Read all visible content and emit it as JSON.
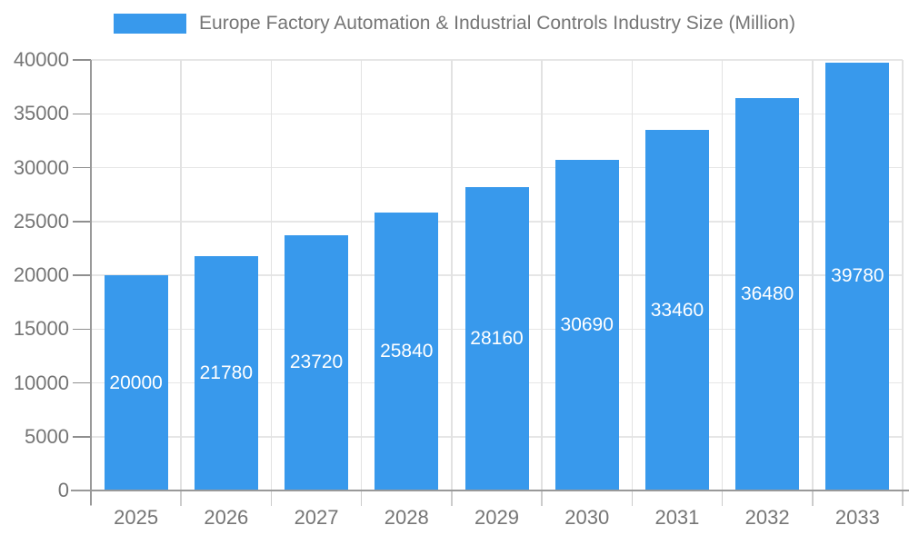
{
  "chart_data": {
    "type": "bar",
    "title": "Europe Factory Automation & Industrial Controls Industry Size (Million)",
    "categories": [
      "2025",
      "2026",
      "2027",
      "2028",
      "2029",
      "2030",
      "2031",
      "2032",
      "2033"
    ],
    "values": [
      20000,
      21780,
      23720,
      25840,
      28160,
      30690,
      33460,
      36480,
      39780
    ],
    "bar_value_labels": [
      "20000",
      "21780",
      "23720",
      "25840",
      "28160",
      "30690",
      "33460",
      "36480",
      "39780"
    ],
    "ytick_labels": [
      "0",
      "5000",
      "10000",
      "15000",
      "20000",
      "25000",
      "30000",
      "35000",
      "40000"
    ],
    "yticks": [
      0,
      5000,
      10000,
      15000,
      20000,
      25000,
      30000,
      35000,
      40000
    ],
    "ylim": [
      0,
      40000
    ],
    "xlabel": "",
    "ylabel": "",
    "grid": true,
    "legend_position": "top",
    "colors": {
      "bar": "#3899ec",
      "axis": "#999999",
      "gridline": "#e6e6e6",
      "y_tick": "#8f8f8f",
      "x_tick": "#cccccc",
      "axis_text": "#757575",
      "bar_label_text": "#ffffff"
    }
  }
}
